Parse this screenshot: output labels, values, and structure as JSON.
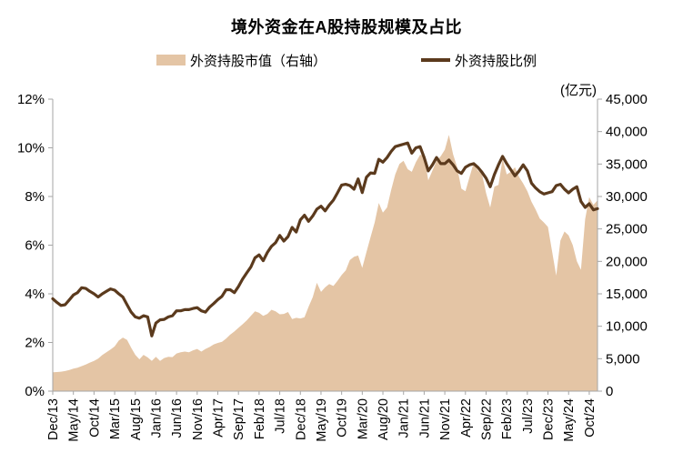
{
  "chart": {
    "title": "境外资金在A股持股规模及占比",
    "legend": [
      {
        "label": "外资持股市值（右轴）",
        "type": "area"
      },
      {
        "label": "外资持股比例",
        "type": "line"
      }
    ],
    "right_axis_unit": "(亿元)"
  },
  "chart_data": {
    "type": "combo-area-line",
    "title": "境外资金在A股持股规模及占比",
    "n_points": 133,
    "x_start": "Dec/13",
    "x_end": "Dec/24",
    "x_tick_every": 5,
    "x_tick_labels": [
      "Dec/13",
      "May/14",
      "Oct/14",
      "Mar/15",
      "Aug/15",
      "Jan/16",
      "Jun/16",
      "Nov/16",
      "Apr/17",
      "Sep/17",
      "Feb/18",
      "Jul/18",
      "Dec/18",
      "May/19",
      "Oct/19",
      "Mar/20",
      "Aug/20",
      "Jan/21",
      "Jun/21",
      "Nov/21",
      "Apr/22",
      "Sep/22",
      "Feb/23",
      "Jul/23",
      "Dec/23",
      "May/24",
      "Oct/24"
    ],
    "left_axis": {
      "min": 0,
      "max": 12,
      "step": 2,
      "tick_labels": [
        "0%",
        "2%",
        "4%",
        "6%",
        "8%",
        "10%",
        "12%"
      ]
    },
    "right_axis": {
      "min": 0,
      "max": 45000,
      "step": 5000,
      "tick_labels": [
        "0",
        "5,000",
        "10,000",
        "15,000",
        "20,000",
        "25,000",
        "30,000",
        "35,000",
        "40,000",
        "45,000"
      ],
      "unit": "(亿元)"
    },
    "grid": false,
    "legend_position": "top",
    "colors": {
      "area": "#e4c5a5",
      "line": "#5b3a1d",
      "axis": "#a6a6a6",
      "text": "#000000"
    },
    "series": [
      {
        "name": "外资持股市值（右轴）",
        "type": "area",
        "axis": "right",
        "color": "#e4c5a5",
        "values": [
          2900,
          2950,
          3000,
          3100,
          3250,
          3480,
          3600,
          3850,
          4100,
          4400,
          4650,
          5000,
          5570,
          6000,
          6400,
          6900,
          7800,
          8260,
          7900,
          6700,
          5600,
          4900,
          5600,
          5200,
          4650,
          5300,
          4650,
          5100,
          5300,
          5250,
          5800,
          6000,
          6100,
          6000,
          6300,
          6500,
          6100,
          6500,
          6800,
          7200,
          7430,
          7600,
          8100,
          8700,
          9200,
          9750,
          10300,
          10900,
          11600,
          12300,
          12075,
          11600,
          11900,
          12540,
          12300,
          11840,
          11900,
          12200,
          11100,
          11300,
          11200,
          11400,
          13000,
          14500,
          16700,
          15300,
          16000,
          16500,
          16200,
          17000,
          17900,
          18600,
          20200,
          20700,
          20900,
          19000,
          21400,
          23700,
          26000,
          29000,
          27500,
          28300,
          31000,
          33400,
          35000,
          35500,
          34200,
          33800,
          35300,
          36400,
          36300,
          32500,
          34000,
          35500,
          36200,
          37200,
          39500,
          36500,
          34500,
          31200,
          30800,
          33000,
          35200,
          34000,
          33500,
          30500,
          28300,
          31500,
          31800,
          35800,
          33400,
          33800,
          34500,
          33000,
          32000,
          30800,
          29200,
          28000,
          26600,
          26000,
          25300,
          21500,
          17800,
          23200,
          24600,
          24000,
          22500,
          20000,
          18700,
          26500,
          29900,
          28700,
          29400
        ]
      },
      {
        "name": "外资持股比例",
        "type": "line",
        "axis": "left",
        "color": "#5b3a1d",
        "values": [
          3.8,
          3.65,
          3.52,
          3.55,
          3.75,
          3.95,
          4.05,
          4.25,
          4.22,
          4.1,
          4.0,
          3.87,
          4.0,
          4.1,
          4.2,
          4.15,
          4.0,
          3.87,
          3.55,
          3.25,
          3.05,
          3.0,
          3.1,
          3.05,
          2.27,
          2.8,
          2.93,
          2.95,
          3.05,
          3.1,
          3.3,
          3.3,
          3.35,
          3.35,
          3.4,
          3.43,
          3.3,
          3.25,
          3.45,
          3.6,
          3.76,
          3.9,
          4.17,
          4.17,
          4.05,
          4.3,
          4.6,
          4.86,
          5.1,
          5.48,
          5.6,
          5.36,
          5.7,
          5.95,
          6.1,
          6.4,
          6.17,
          6.35,
          6.73,
          6.54,
          7.04,
          7.23,
          6.98,
          7.2,
          7.48,
          7.6,
          7.41,
          7.65,
          7.85,
          8.15,
          8.47,
          8.5,
          8.45,
          8.3,
          8.72,
          8.16,
          8.79,
          8.97,
          8.95,
          9.53,
          9.41,
          9.6,
          9.85,
          10.05,
          10.1,
          10.15,
          10.2,
          9.78,
          10.0,
          10.05,
          9.6,
          9.05,
          9.3,
          9.6,
          9.35,
          9.35,
          9.5,
          9.3,
          9.05,
          8.95,
          9.2,
          9.3,
          9.35,
          9.2,
          9.0,
          8.75,
          8.4,
          8.9,
          9.3,
          9.65,
          9.35,
          9.1,
          8.85,
          9.05,
          9.3,
          9.05,
          8.55,
          8.35,
          8.2,
          8.1,
          8.15,
          8.2,
          8.45,
          8.5,
          8.3,
          8.15,
          8.3,
          8.4,
          7.8,
          7.55,
          7.7,
          7.45,
          7.5
        ]
      }
    ]
  }
}
